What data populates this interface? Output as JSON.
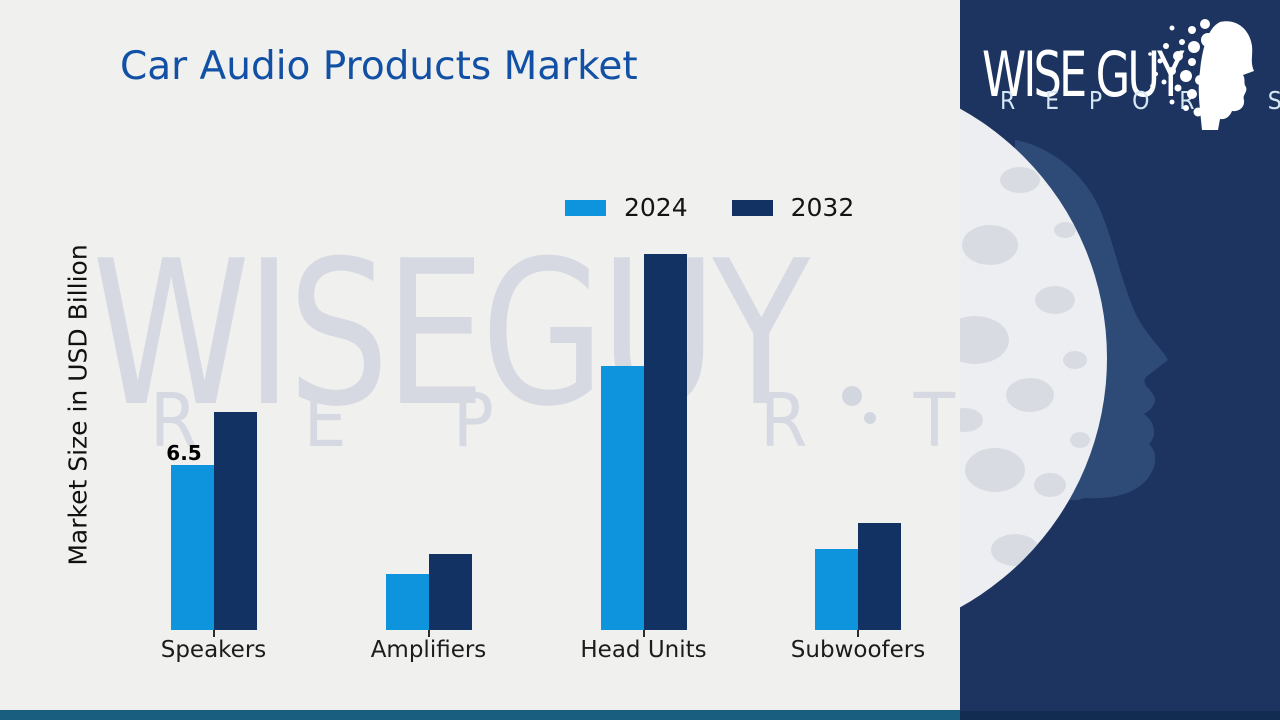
{
  "header": {
    "title": "Car Audio Products Market",
    "title_color": "#1150a4"
  },
  "brand": {
    "name": "WISE GUY",
    "sub": "R E P O R T S",
    "panel_color": "#1d3461",
    "footer_band_color": "#195e7e"
  },
  "watermark": {
    "line1": "WISEGUY",
    "line2": "R E P O R T S"
  },
  "legend": [
    {
      "label": "2024",
      "color": "#0d94dc"
    },
    {
      "label": "2032",
      "color": "#123263"
    }
  ],
  "chart_data": {
    "type": "bar",
    "title": "Car Audio Products Market",
    "xlabel": "",
    "ylabel": "Market Size in USD Billion",
    "categories": [
      "Speakers",
      "Amplifiers",
      "Head Units",
      "Subwoofers"
    ],
    "series": [
      {
        "name": "2024",
        "color": "#0d94dc",
        "values": [
          6.5,
          2.2,
          10.4,
          3.2
        ]
      },
      {
        "name": "2032",
        "color": "#123263",
        "values": [
          8.6,
          3.0,
          14.8,
          4.2
        ]
      }
    ],
    "shown_value_labels": [
      {
        "category": "Speakers",
        "series": "2024",
        "text": "6.5"
      }
    ],
    "legend_position": "top",
    "grid": false,
    "y_axis_ticks_visible": false,
    "unit": "USD Billion"
  }
}
